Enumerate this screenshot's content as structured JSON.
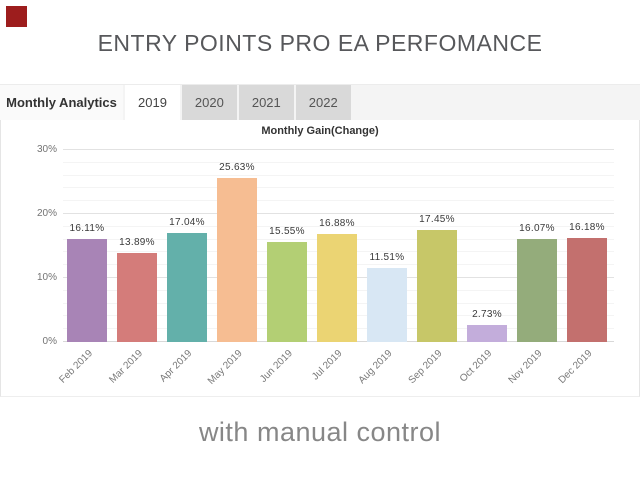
{
  "watermark": {
    "color": "#9d1d1d"
  },
  "header": {
    "title": "ENTRY POINTS PRO EA PERFOMANCE"
  },
  "tabs": {
    "analytics_label": "Monthly Analytics",
    "items": [
      {
        "label": "2019",
        "active": true
      },
      {
        "label": "2020",
        "active": false
      },
      {
        "label": "2021",
        "active": false
      },
      {
        "label": "2022",
        "active": false
      }
    ]
  },
  "footer": {
    "caption": "with manual control"
  },
  "chart_data": {
    "type": "bar",
    "title": "Monthly Gain(Change)",
    "categories": [
      "Feb 2019",
      "Mar 2019",
      "Apr 2019",
      "May 2019",
      "Jun 2019",
      "Jul 2019",
      "Aug 2019",
      "Sep 2019",
      "Oct 2019",
      "Nov 2019",
      "Dec 2019"
    ],
    "values": [
      16.11,
      13.89,
      17.04,
      25.63,
      15.55,
      16.88,
      11.51,
      17.45,
      2.73,
      16.07,
      16.18
    ],
    "value_labels": [
      "16.11%",
      "13.89%",
      "17.04%",
      "25.63%",
      "15.55%",
      "16.88%",
      "11.51%",
      "17.45%",
      "2.73%",
      "16.07%",
      "16.18%"
    ],
    "bar_colors": [
      "#a884b6",
      "#d47c7a",
      "#63b0aa",
      "#f6bd92",
      "#b3cf74",
      "#ebd473",
      "#d8e7f4",
      "#c7c768",
      "#c3addb",
      "#94ac7b",
      "#c3706e"
    ],
    "xlabel": "",
    "ylabel": "",
    "ylim": [
      0,
      30
    ],
    "yticks": [
      {
        "value": 0,
        "label": "0%"
      },
      {
        "value": 10,
        "label": "10%"
      },
      {
        "value": 20,
        "label": "20%"
      },
      {
        "value": 30,
        "label": "30%"
      }
    ],
    "minor_grid_step_percent": 2,
    "grid": "horizontal",
    "legend": "none"
  }
}
